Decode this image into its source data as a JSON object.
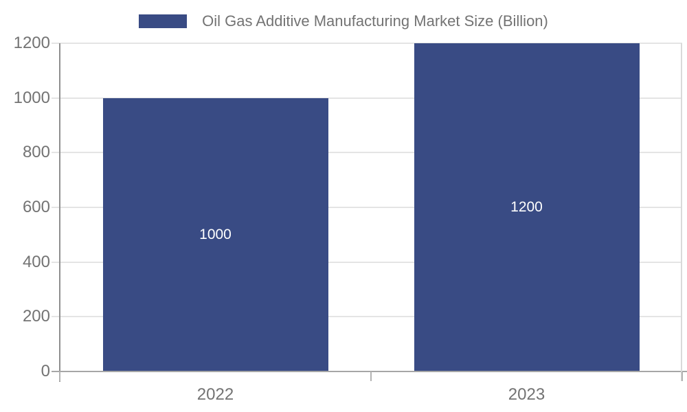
{
  "chart_data": {
    "type": "bar",
    "legend_label": "Oil Gas Additive Manufacturing Market Size (Billion)",
    "categories": [
      "2022",
      "2023"
    ],
    "values": [
      1000,
      1200
    ],
    "data_labels": [
      "1000",
      "1200"
    ],
    "yticks": [
      0,
      200,
      400,
      600,
      800,
      1000,
      1200
    ],
    "ylim": [
      0,
      1200
    ],
    "xlabel": "",
    "ylabel": "",
    "grid": true,
    "legend_position": "top-center",
    "bar_color": "#394B84",
    "data_label_color": "#ffffff",
    "axis_text_color": "#737373"
  }
}
